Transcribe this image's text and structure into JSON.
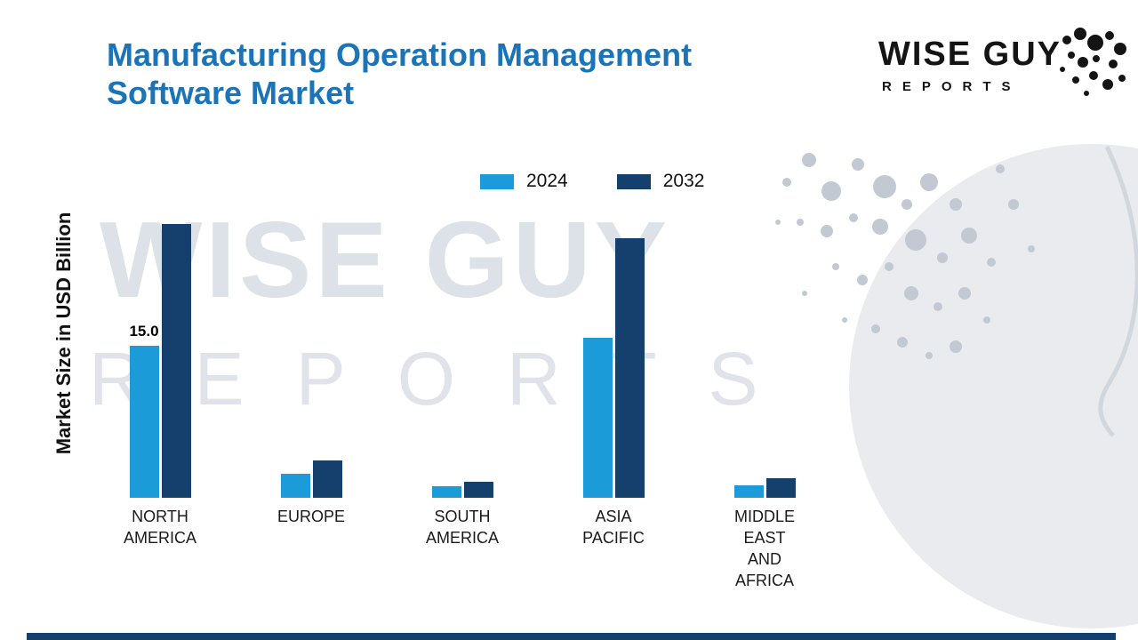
{
  "header": {
    "title": "Manufacturing Operation Management Software Market",
    "logo": {
      "name": "WISE GUY",
      "reports": "REPORTS"
    }
  },
  "watermark": {
    "line1": "WISE GUY",
    "line2": "REPORTS"
  },
  "chart_data": {
    "type": "bar",
    "title": "Manufacturing Operation Management Software Market",
    "xlabel": "",
    "ylabel": "Market Size in USD Billion",
    "categories": [
      "NORTH AMERICA",
      "EUROPE",
      "SOUTH AMERICA",
      "ASIA PACIFIC",
      "MIDDLE EAST AND AFRICA"
    ],
    "category_labels": [
      "NORTH\nAMERICA",
      "EUROPE",
      "SOUTH\nAMERICA",
      "ASIA\nPACIFIC",
      "MIDDLE\nEAST\nAND\nAFRICA"
    ],
    "series": [
      {
        "name": "2024",
        "color": "#1b9bd8",
        "values": [
          15.0,
          2.4,
          1.1,
          15.8,
          1.2
        ]
      },
      {
        "name": "2032",
        "color": "#15406e",
        "values": [
          27.0,
          3.7,
          1.6,
          25.6,
          1.9
        ]
      }
    ],
    "ylim": [
      0,
      30
    ],
    "grid": false,
    "legend_position": "top",
    "bar_label": {
      "series": "2024",
      "category": "NORTH AMERICA",
      "text": "15.0"
    }
  },
  "colors": {
    "title": "#1b74b8",
    "accent_2024": "#1b9bd8",
    "accent_2032": "#15406e",
    "watermark": "#dde2e8",
    "footer_bar": "#15406e",
    "decor_circle": "#e9ebee"
  }
}
